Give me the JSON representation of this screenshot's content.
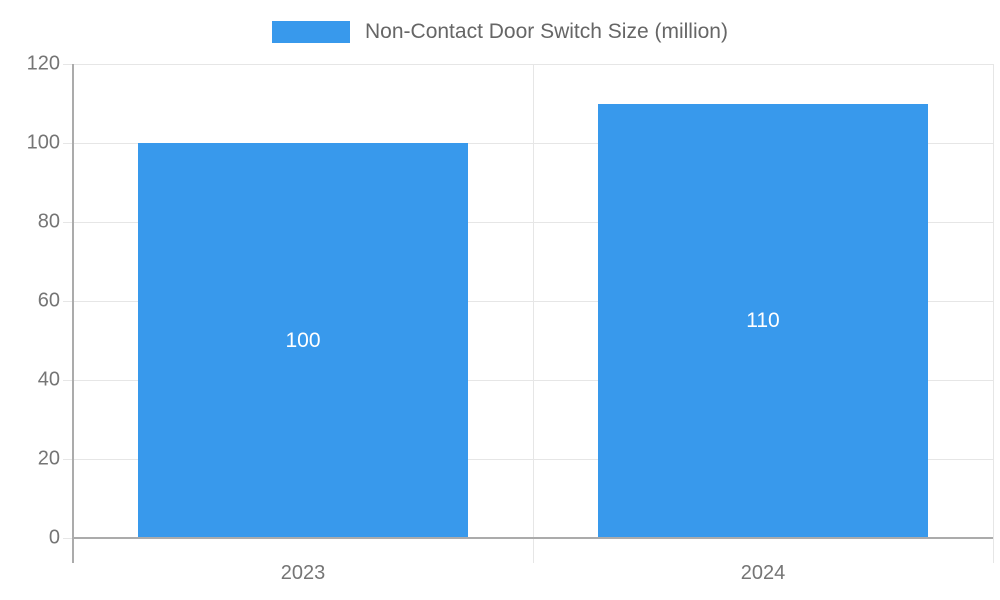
{
  "chart_data": {
    "type": "bar",
    "title": "",
    "legend": "Non-Contact Door Switch Size (million)",
    "legend_position": "top",
    "categories": [
      "2023",
      "2024"
    ],
    "series": [
      {
        "name": "Non-Contact Door Switch Size (million)",
        "values": [
          100,
          110
        ]
      }
    ],
    "bar_labels": [
      "100",
      "110"
    ],
    "xlabel": "",
    "ylabel": "",
    "ylim": [
      0,
      120
    ],
    "yticks": [
      0,
      20,
      40,
      60,
      80,
      100,
      120
    ],
    "grid": true,
    "colors": {
      "bar": "#3899EC",
      "grid_line": "#E6E6E6",
      "axis_line": "#ABABAB",
      "tick_text": "#757575",
      "legend_text": "#666666",
      "bar_label_text": "#FFFFFF",
      "background": "#FFFFFF"
    }
  }
}
